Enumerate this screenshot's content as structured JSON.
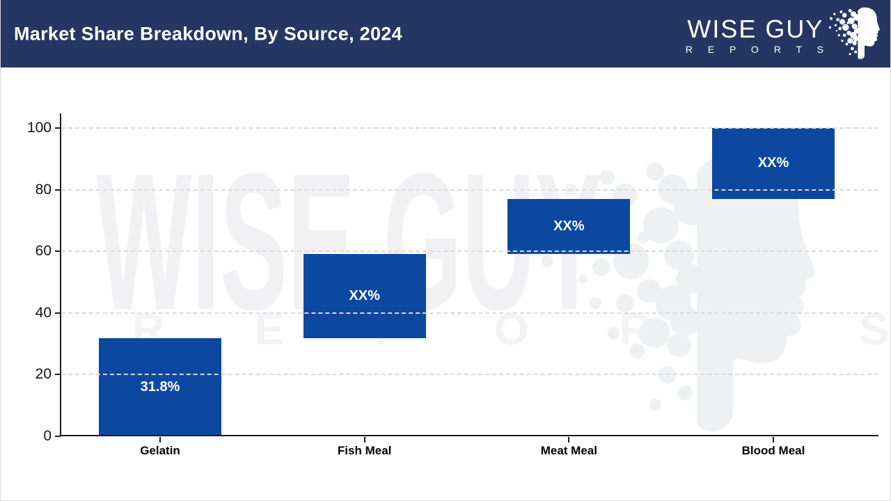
{
  "header": {
    "title": "Market Share Breakdown, By Source, 2024",
    "brand": {
      "line1": "WISE GUY",
      "line2": "R E P O R T S"
    }
  },
  "watermark": {
    "line1": "WISE GUY",
    "line2": "R E P O R T S"
  },
  "colors": {
    "header_bg": "#253662",
    "bar": "#0d48a0",
    "bar_label": "#ffffff",
    "grid": "#d9d9d9",
    "axis": "#1a1a1a",
    "tick_text": "#141414",
    "watermark": "#f1f1f3"
  },
  "chart_data": {
    "type": "bar",
    "subtype": "waterfall-floating-bars",
    "title": "Market Share Breakdown, By Source, 2024",
    "xlabel": "",
    "ylabel": "",
    "categories": [
      "Gelatin",
      "Fish Meal",
      "Meat Meal",
      "Blood Meal"
    ],
    "segments": [
      {
        "category": "Gelatin",
        "start": 0,
        "end": 31.8,
        "label": "31.8%"
      },
      {
        "category": "Fish Meal",
        "start": 31.8,
        "end": 59,
        "label": "XX%"
      },
      {
        "category": "Meat Meal",
        "start": 59,
        "end": 77,
        "label": "XX%"
      },
      {
        "category": "Blood Meal",
        "start": 77,
        "end": 100,
        "label": "XX%"
      }
    ],
    "ylim": [
      0,
      100
    ],
    "yticks": [
      0,
      20,
      40,
      60,
      80,
      100
    ],
    "grid": "dashed-horizontal",
    "legend": "none"
  }
}
